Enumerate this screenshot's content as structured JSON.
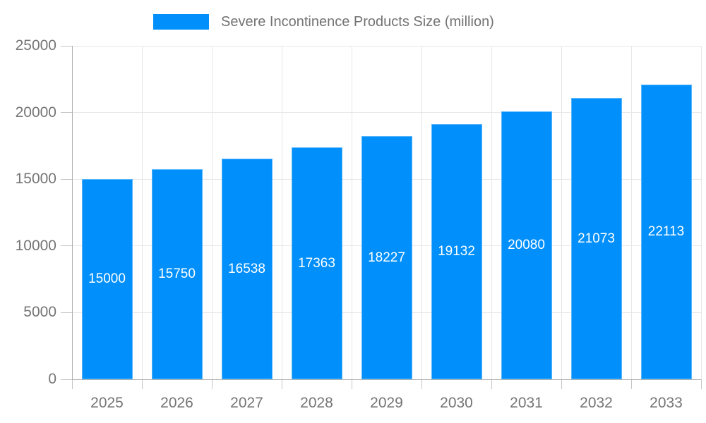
{
  "legend": {
    "label": "Severe Incontinence Products Size (million)"
  },
  "colors": {
    "bar": "#008FFB",
    "bar_label": "#ffffff",
    "grid": "#e7e7e7",
    "axis": "#b0b0b0",
    "tick": "#c6c6c6",
    "axis_label": "#757575",
    "legend_text": "#737373",
    "background": "#ffffff"
  },
  "chart_data": {
    "type": "bar",
    "title": "",
    "xlabel": "",
    "ylabel": "",
    "categories": [
      "2025",
      "2026",
      "2027",
      "2028",
      "2029",
      "2030",
      "2031",
      "2032",
      "2033"
    ],
    "series": [
      {
        "name": "Severe Incontinence Products Size (million)",
        "values": [
          15000,
          15750,
          16538,
          17363,
          18227,
          19132,
          20080,
          21073,
          22113
        ]
      }
    ],
    "bar_labels": [
      15000,
      15750,
      16538,
      17363,
      18227,
      19132,
      20080,
      21073,
      22113
    ],
    "ylim": [
      0,
      25000
    ],
    "yticks": [
      0,
      5000,
      10000,
      15000,
      20000,
      25000
    ],
    "grid": true,
    "legend_position": "top"
  }
}
